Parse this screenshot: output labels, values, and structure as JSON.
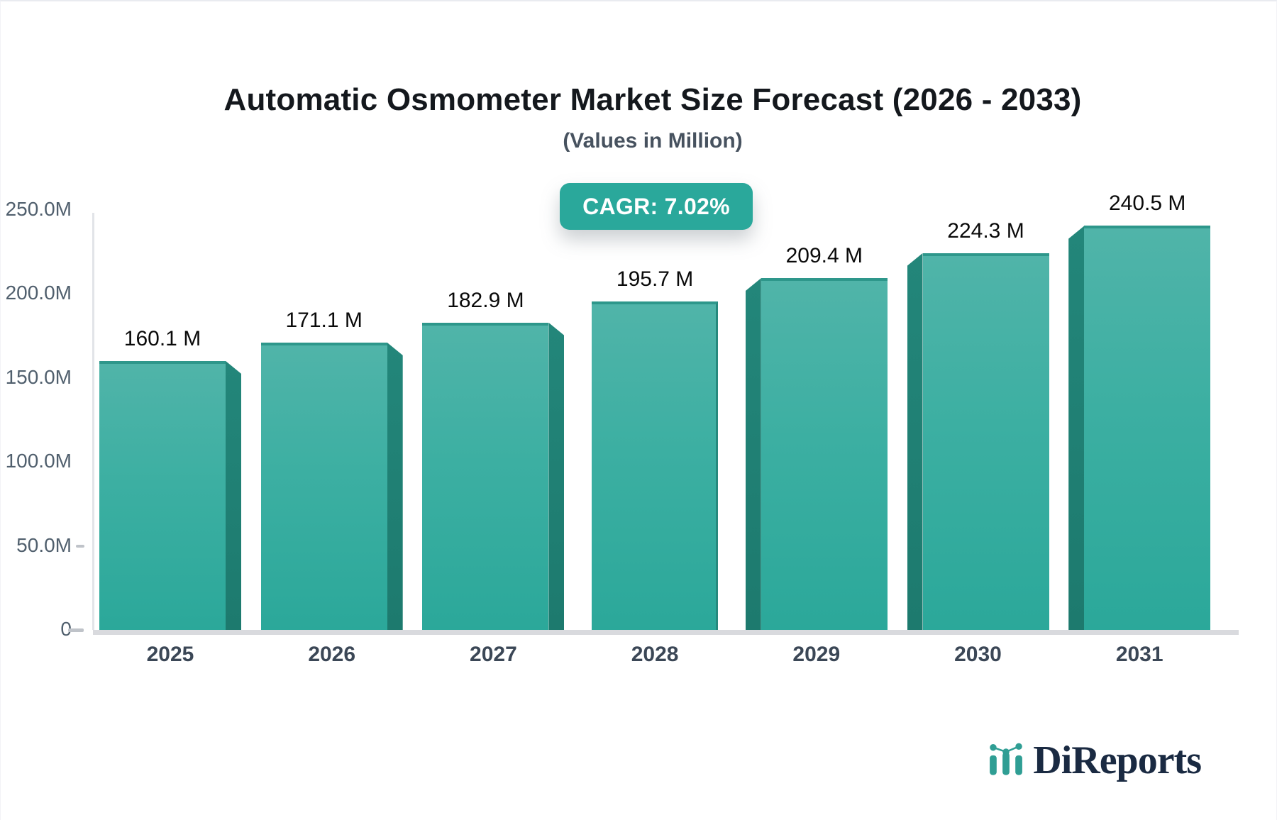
{
  "header": {
    "title": "Automatic Osmometer Market Size Forecast (2026 - 2033)",
    "subtitle": "(Values in Million)"
  },
  "badge": {
    "label": "CAGR: 7.02%",
    "bg_color": "#2aa89b",
    "text_color": "#ffffff"
  },
  "chart_data": {
    "type": "bar",
    "title": "Automatic Osmometer Market Size Forecast (2026 - 2033)",
    "subtitle": "(Values in Million)",
    "annotation": "CAGR: 7.02%",
    "categories": [
      "2025",
      "2026",
      "2027",
      "2028",
      "2029",
      "2030",
      "2031"
    ],
    "values": [
      160.1,
      171.1,
      182.9,
      195.7,
      209.4,
      224.3,
      240.5
    ],
    "value_labels": [
      "160.1 M",
      "171.1 M",
      "182.9 M",
      "195.7 M",
      "209.4 M",
      "224.3 M",
      "240.5 M"
    ],
    "unit": "Million",
    "y_ticks": [
      {
        "label": "250.0M",
        "value": 250,
        "dash": false
      },
      {
        "label": "200.0M",
        "value": 200,
        "dash": false
      },
      {
        "label": "150.0M",
        "value": 150,
        "dash": false
      },
      {
        "label": "100.0M",
        "value": 100,
        "dash": false
      },
      {
        "label": "50.0M",
        "value": 50,
        "dash": true
      },
      {
        "label": "0",
        "value": 0,
        "dash": true
      }
    ],
    "ylim": [
      0,
      250
    ],
    "grid": false,
    "legend": "none",
    "bar_color_top": "#50b4a9",
    "bar_color_bottom": "#2ba89a",
    "bar_side_color": "#1d7a6e"
  },
  "logo": {
    "text": "DiReports",
    "icon": "bar-chart-logo-icon",
    "text_color": "#1a2a42",
    "accent_color": "#2f9e94"
  }
}
